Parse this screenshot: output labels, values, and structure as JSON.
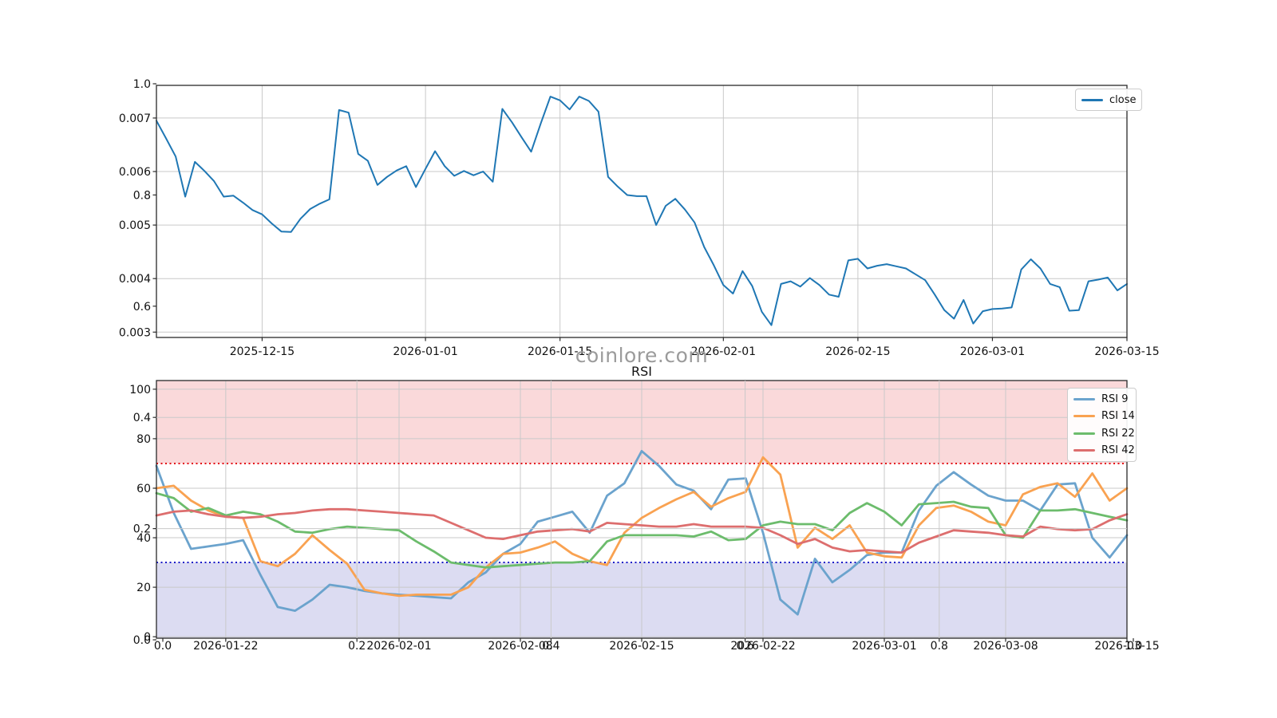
{
  "watermark": "coinlore.com",
  "colors": {
    "grid": "#c9c9c9",
    "spine": "#2a2a2a",
    "tick_text": "#111111",
    "watermark": "#9b9b9b",
    "close_line": "#1f77b4",
    "rsi9_line": "#6ba3cd",
    "rsi14_line": "#f9a251",
    "rsi22_line": "#6cbc6c",
    "rsi42_line": "#dd6e6e",
    "overbought_band": "#fad9da",
    "oversold_band": "#dcdcf2",
    "overbought_line": "#e30613",
    "oversold_line": "#1a1ac8"
  },
  "overlay_axis": {
    "x_tick_labels": [
      "0.0",
      "0.2",
      "0.4",
      "0.6",
      "0.8",
      "1.0"
    ],
    "y_tick_labels": [
      "1.0",
      "0.8",
      "0.6",
      "0.4",
      "0.2",
      "0.0"
    ]
  },
  "chart_data": [
    {
      "type": "line",
      "title": "",
      "legend": [
        "close"
      ],
      "legend_position": "upper right",
      "grid": true,
      "x_start": "2025-12-04",
      "x_end": "2026-03-15",
      "x_tick_labels": [
        "2025-12-15",
        "2026-01-01",
        "2026-01-15",
        "2026-02-01",
        "2026-02-15",
        "2026-03-01",
        "2026-03-15"
      ],
      "ylim": [
        0.0029,
        0.00761
      ],
      "y_ticks": [
        0.003,
        0.004,
        0.005,
        0.006,
        0.007
      ],
      "y_tick_labels": [
        "0.003",
        "0.004",
        "0.005",
        "0.006",
        "0.007"
      ],
      "series": [
        {
          "name": "close",
          "color": "#1f77b4",
          "width": 2,
          "values": [
            0.00695,
            0.00662,
            0.00628,
            0.00553,
            0.00618,
            0.00601,
            0.00582,
            0.00553,
            0.00555,
            0.00542,
            0.00528,
            0.0052,
            0.00503,
            0.00488,
            0.00487,
            0.00512,
            0.0053,
            0.0054,
            0.00548,
            0.00715,
            0.0071,
            0.00633,
            0.0062,
            0.00575,
            0.0059,
            0.00602,
            0.0061,
            0.00571,
            0.00605,
            0.00638,
            0.0061,
            0.00592,
            0.00601,
            0.00593,
            0.006,
            0.00581,
            0.00717,
            0.00692,
            0.00664,
            0.00637,
            0.0069,
            0.0074,
            0.00733,
            0.00716,
            0.0074,
            0.00732,
            0.00712,
            0.0059,
            0.00572,
            0.00556,
            0.00554,
            0.00554,
            0.005,
            0.00536,
            0.00549,
            0.00529,
            0.00505,
            0.00459,
            0.00425,
            0.00388,
            0.00372,
            0.00414,
            0.00386,
            0.00338,
            0.00313,
            0.0039,
            0.00395,
            0.00385,
            0.00401,
            0.00388,
            0.0037,
            0.00366,
            0.00434,
            0.00437,
            0.00419,
            0.00424,
            0.00427,
            0.00423,
            0.00419,
            0.00408,
            0.00397,
            0.0037,
            0.00341,
            0.00325,
            0.0036,
            0.00316,
            0.00339,
            0.00343,
            0.00344,
            0.00346,
            0.00417,
            0.00436,
            0.00419,
            0.0039,
            0.00384,
            0.0034,
            0.00341,
            0.00395,
            0.00398,
            0.00402,
            0.00378,
            0.0039
          ]
        }
      ]
    },
    {
      "type": "line",
      "title": "RSI",
      "legend": [
        "RSI 9",
        "RSI 14",
        "RSI 22",
        "RSI 42"
      ],
      "legend_position": "upper right",
      "grid": true,
      "x_start": "2026-01-18",
      "x_end": "2026-03-15",
      "x_tick_labels": [
        "2026-01-22",
        "2026-02-01",
        "2026-02-08",
        "2026-02-15",
        "2026-02-22",
        "2026-03-01",
        "2026-03-08",
        "2026-03-15"
      ],
      "ylim": [
        -0.6,
        103.5
      ],
      "y_ticks": [
        0,
        20,
        40,
        60,
        80,
        100
      ],
      "y_tick_labels": [
        "0",
        "20",
        "40",
        "60",
        "80",
        "100"
      ],
      "bands": [
        {
          "from": 70,
          "to": 103.5,
          "color": "#fad9da",
          "name": "overbought-band"
        },
        {
          "from": -0.6,
          "to": 30,
          "color": "#dcdcf2",
          "name": "oversold-band"
        }
      ],
      "hlines": [
        {
          "y": 70,
          "color": "#e30613",
          "name": "overbought-threshold"
        },
        {
          "y": 30,
          "color": "#1a1ac8",
          "name": "oversold-threshold"
        }
      ],
      "series": [
        {
          "name": "RSI 9",
          "color": "#6ba3cd",
          "width": 2.8,
          "values": [
            69,
            50,
            35.5,
            36.5,
            37.5,
            39,
            25,
            12,
            10.5,
            15,
            21,
            20,
            18.5,
            17.5,
            17,
            16.5,
            16,
            15.5,
            22,
            26,
            33.5,
            37.5,
            46.5,
            48.5,
            50.5,
            42,
            57,
            62,
            75,
            69,
            61.5,
            59,
            51.5,
            63.5,
            64,
            42,
            15,
            9,
            31.5,
            22,
            27,
            33,
            34,
            34,
            51,
            61,
            66.5,
            61.5,
            57,
            55,
            55,
            51,
            61.5,
            62,
            40,
            32,
            41
          ]
        },
        {
          "name": "RSI 14",
          "color": "#f9a251",
          "width": 2.8,
          "values": [
            60,
            61,
            55,
            51,
            48.5,
            48,
            30.5,
            28.5,
            33.5,
            41,
            35,
            29.5,
            19,
            17.5,
            16.5,
            17,
            17,
            17,
            20,
            28,
            33.5,
            34,
            36,
            38.5,
            33.5,
            30.5,
            29,
            42,
            48,
            52,
            55.5,
            58.5,
            52.5,
            56,
            58.5,
            72.5,
            65.5,
            36,
            44,
            39.5,
            45,
            34,
            32.5,
            32,
            45,
            52,
            53,
            50.5,
            46.5,
            45,
            57.5,
            60.5,
            62,
            56.5,
            66,
            55,
            60
          ]
        },
        {
          "name": "RSI 22",
          "color": "#6cbc6c",
          "width": 2.8,
          "values": [
            58,
            56,
            50.5,
            52,
            49,
            50.5,
            49.5,
            46.5,
            42.5,
            42,
            43.5,
            44.5,
            44,
            43.5,
            43,
            38.5,
            34.5,
            30,
            29,
            28,
            28.5,
            29,
            29.5,
            30,
            30,
            30.5,
            38.5,
            41,
            41,
            41,
            41,
            40.5,
            42.5,
            39,
            39.5,
            45,
            46.5,
            45.5,
            45.5,
            43,
            50,
            54,
            50.5,
            45,
            53.5,
            54,
            54.5,
            52.5,
            52,
            41,
            40,
            51,
            51,
            51.5,
            50,
            48.5,
            47
          ]
        },
        {
          "name": "RSI 42",
          "color": "#dd6e6e",
          "width": 2.8,
          "values": [
            49,
            50.5,
            51,
            49.5,
            48.5,
            48,
            48.5,
            49.5,
            50,
            51,
            51.5,
            51.5,
            51,
            50.5,
            50,
            49.5,
            49,
            46,
            43,
            40,
            39.5,
            41,
            42.5,
            43,
            43.5,
            42.5,
            46,
            45.5,
            45,
            44.5,
            44.5,
            45.5,
            44.5,
            44.5,
            44.5,
            44,
            41,
            37.5,
            39.5,
            36,
            34.5,
            35,
            34.5,
            34,
            38,
            40.5,
            43,
            42.5,
            42,
            41,
            40.5,
            44.5,
            43.5,
            43,
            43.5,
            47,
            49.5
          ]
        }
      ]
    }
  ]
}
